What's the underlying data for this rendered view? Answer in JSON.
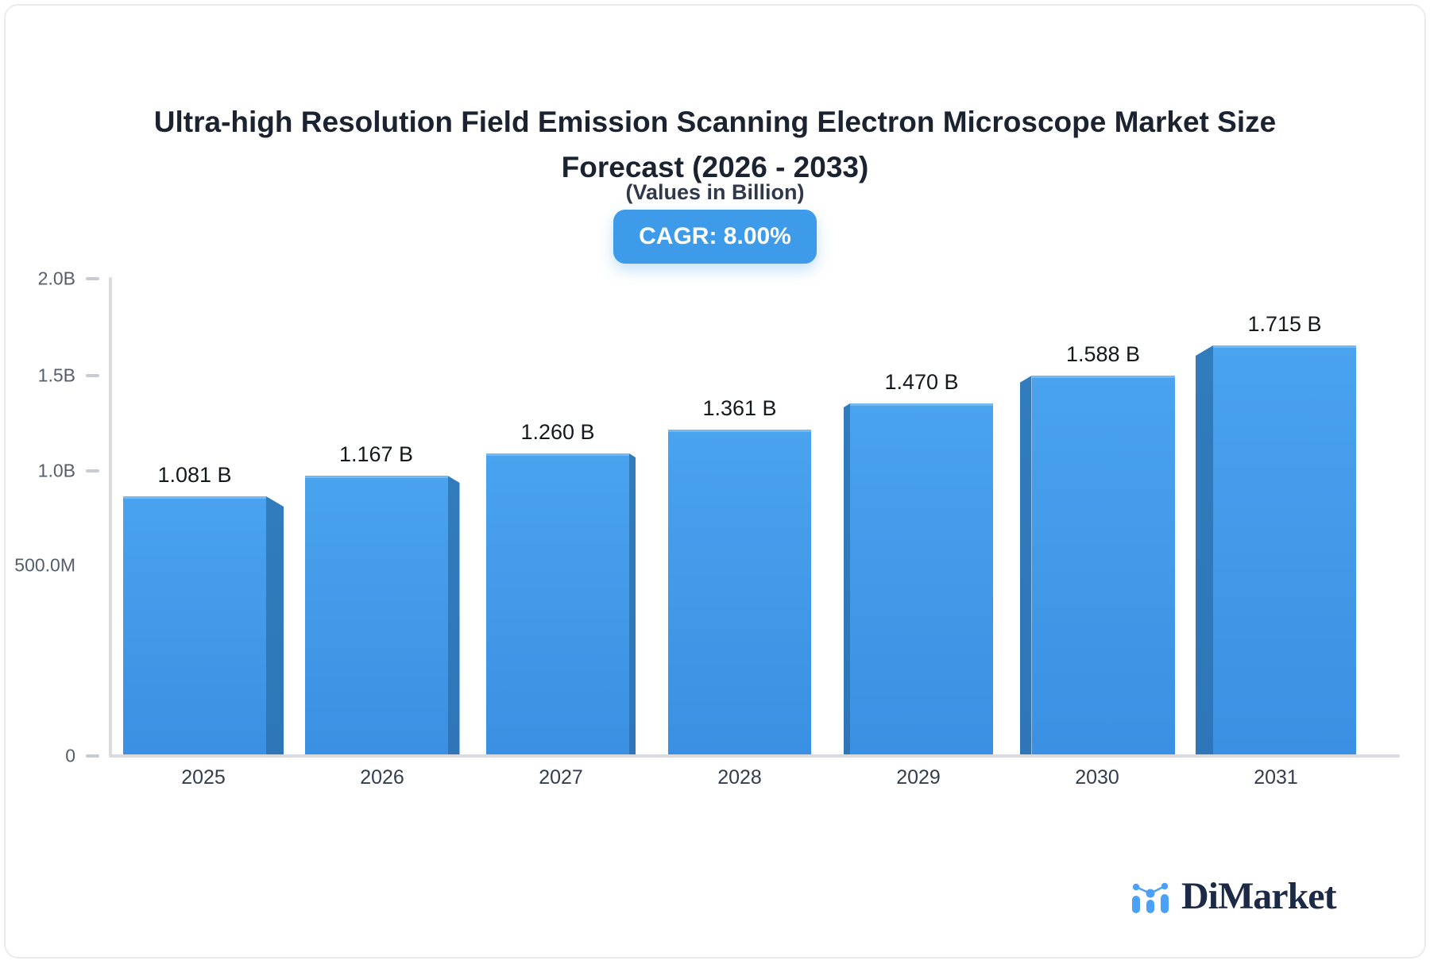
{
  "header": {
    "title_line1": "Ultra-high Resolution Field Emission Scanning Electron Microscope Market Size",
    "title_line2": "Forecast (2026 - 2033)",
    "subtitle": "(Values in Billion)",
    "cagr": "CAGR: 8.00%"
  },
  "chart_data": {
    "type": "bar",
    "title": "Ultra-high Resolution Field Emission Scanning Electron Microscope Market Size Forecast (2026 - 2033)",
    "unit": "Billion USD",
    "categories": [
      "2025",
      "2026",
      "2027",
      "2028",
      "2029",
      "2030",
      "2031"
    ],
    "values": [
      1.081,
      1.167,
      1.26,
      1.361,
      1.47,
      1.588,
      1.715
    ],
    "data_labels": [
      "1.081 B",
      "1.167 B",
      "1.260 B",
      "1.361 B",
      "1.470 B",
      "1.588 B",
      "1.715 B"
    ],
    "y_ticks": [
      "2.0B",
      "1.5B",
      "1.0B",
      "500.0M",
      "0"
    ],
    "ylim": [
      0,
      2.0
    ],
    "grid": false,
    "legend": "none",
    "cagr_percent": 8.0
  },
  "colors": {
    "bar_top": "#4aa3ee",
    "bar_bottom": "#3a90e2",
    "bar_side": "#2e76b7",
    "badge_bg": "#3d9bea",
    "axis_line": "#d9dbde",
    "logo_blue": "#4ba1f6",
    "logo_navy": "#1c2a46"
  },
  "logo": {
    "brand": "DiMarket",
    "icon": "bar-chart-trend-icon"
  }
}
